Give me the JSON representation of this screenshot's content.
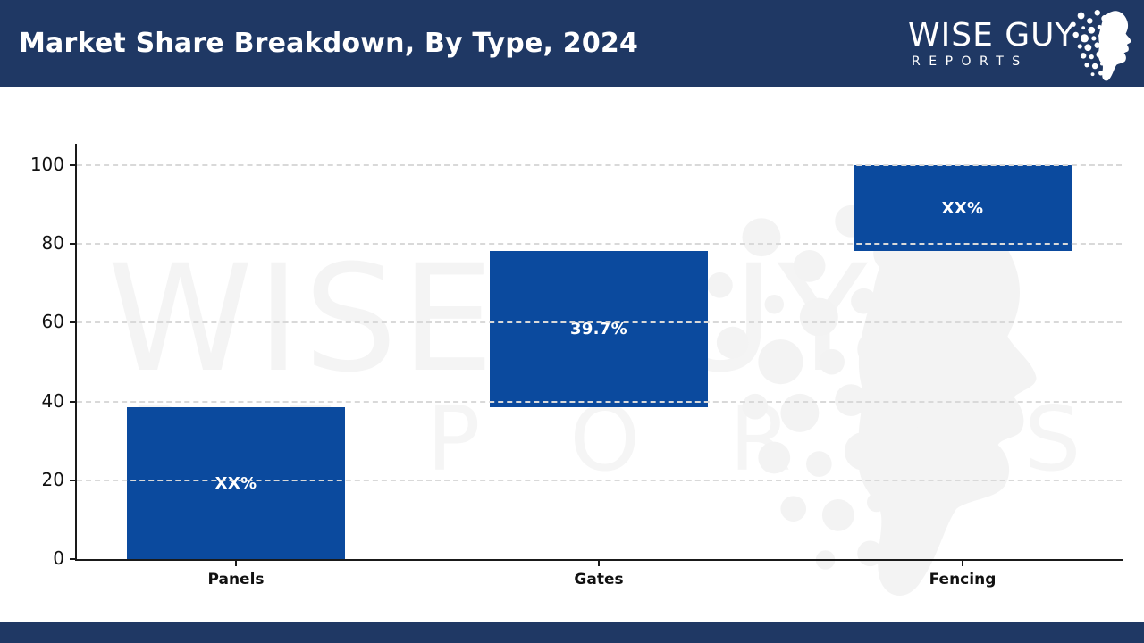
{
  "header": {
    "title": "Market Share Breakdown, By Type, 2024"
  },
  "logo": {
    "line1": "WISE GUY",
    "line2": "REPORTS"
  },
  "watermark": {
    "line1": "WISE GUY",
    "line2": "R E P O R T S"
  },
  "colors": {
    "header_bg": "#1f3864",
    "footer_bg": "#1f3864",
    "bar_blue": "#0b4a9e",
    "gridline": "#d9d9d9",
    "axis": "#1a1a1a",
    "bar_label_text": "#ffffff",
    "watermark_gray": "#f3f3f3"
  },
  "chart_data": {
    "type": "bar",
    "subtype": "waterfall",
    "title": "Market Share Breakdown, By Type, 2024",
    "xlabel": "",
    "ylabel": "",
    "categories": [
      "Panels",
      "Gates",
      "Fencing"
    ],
    "segments": [
      {
        "category": "Panels",
        "start": 0,
        "end": 38.5,
        "value_label": "XX%"
      },
      {
        "category": "Gates",
        "start": 38.5,
        "end": 78.2,
        "value_label": "39.7%"
      },
      {
        "category": "Fencing",
        "start": 78.2,
        "end": 100,
        "value_label": "XX%"
      }
    ],
    "yticks": [
      0,
      20,
      40,
      60,
      80,
      100
    ],
    "ylim": [
      0,
      105
    ],
    "grid": "horizontal-dashed",
    "grid_over_bars": true,
    "legend": "none",
    "bar_color": "#0b4a9e"
  }
}
